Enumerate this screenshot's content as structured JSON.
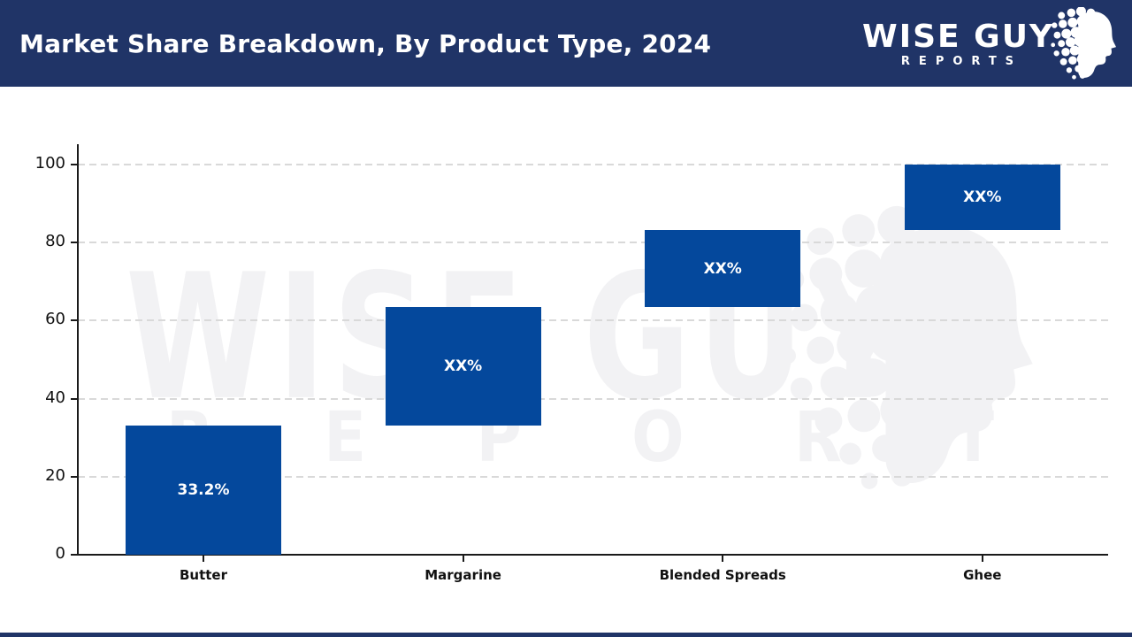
{
  "header": {
    "title": "Market Share Breakdown, By Product Type, 2024",
    "logo": {
      "line1": "WISE GUY",
      "line2": "REPORTS"
    }
  },
  "watermark": {
    "line1": "WISE GUY",
    "line2": "REPORTS"
  },
  "colors": {
    "header_navy": "#203467",
    "bar_blue": "#04489c",
    "watermark_gray": "#f2f2f4",
    "gridline_gray": "#d9d9d9",
    "axis_black": "#1a1a1a",
    "label_white": "#ffffff"
  },
  "chart_data": {
    "type": "bar",
    "subtype": "waterfall",
    "title": "Market Share Breakdown, By Product Type, 2024",
    "xlabel": "",
    "ylabel": "",
    "categories": [
      "Butter",
      "Margarine",
      "Blended Spreads",
      "Ghee"
    ],
    "segments": [
      {
        "category": "Butter",
        "start": 0,
        "end": 33.2,
        "label": "33.2%"
      },
      {
        "category": "Margarine",
        "start": 33.2,
        "end": 63.4,
        "label": "XX%"
      },
      {
        "category": "Blended Spreads",
        "start": 63.4,
        "end": 83.2,
        "label": "XX%"
      },
      {
        "category": "Ghee",
        "start": 83.2,
        "end": 100,
        "label": "XX%"
      }
    ],
    "yticks": [
      0,
      20,
      40,
      60,
      80,
      100
    ],
    "ylim": [
      0,
      100
    ],
    "grid": "horizontal-dashed",
    "legend": "none"
  }
}
